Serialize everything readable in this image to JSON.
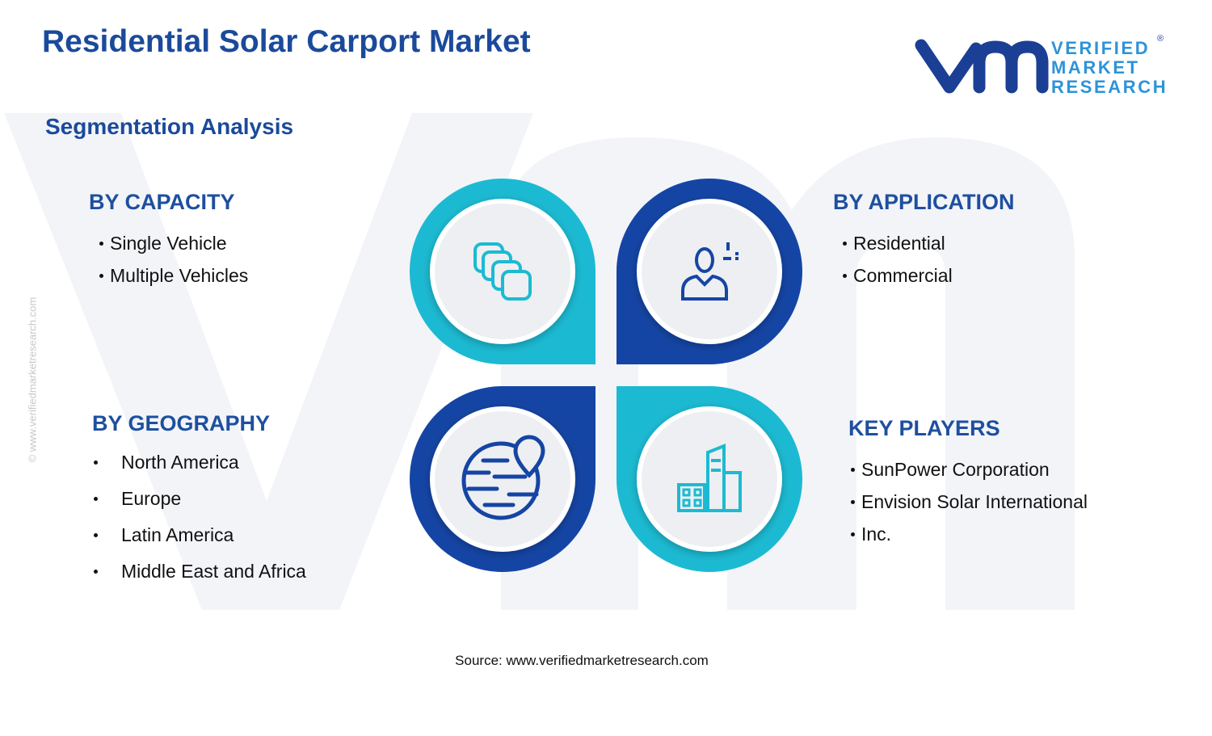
{
  "header": {
    "title": "Residential Solar Carport Market",
    "subtitle": "Segmentation Analysis"
  },
  "logo": {
    "lines": [
      "VERIFIED",
      "MARKET",
      "RESEARCH"
    ],
    "mark": "®"
  },
  "watermark": "© www.verifiedmarketresearch.com",
  "segments": [
    {
      "heading": "BY CAPACITY",
      "items": [
        "Single Vehicle",
        "Multiple Vehicles"
      ]
    },
    {
      "heading": "BY APPLICATION",
      "items": [
        "Residential",
        "Commercial"
      ]
    },
    {
      "heading": "BY GEOGRAPHY",
      "items": [
        "North America",
        "Europe",
        "Latin America",
        "Middle East and Africa"
      ]
    },
    {
      "heading": "KEY PLAYERS",
      "items": [
        "SunPower Corporation",
        "Envision Solar International",
        "Inc."
      ]
    }
  ],
  "source": "Source: www.verifiedmarketresearch.com"
}
